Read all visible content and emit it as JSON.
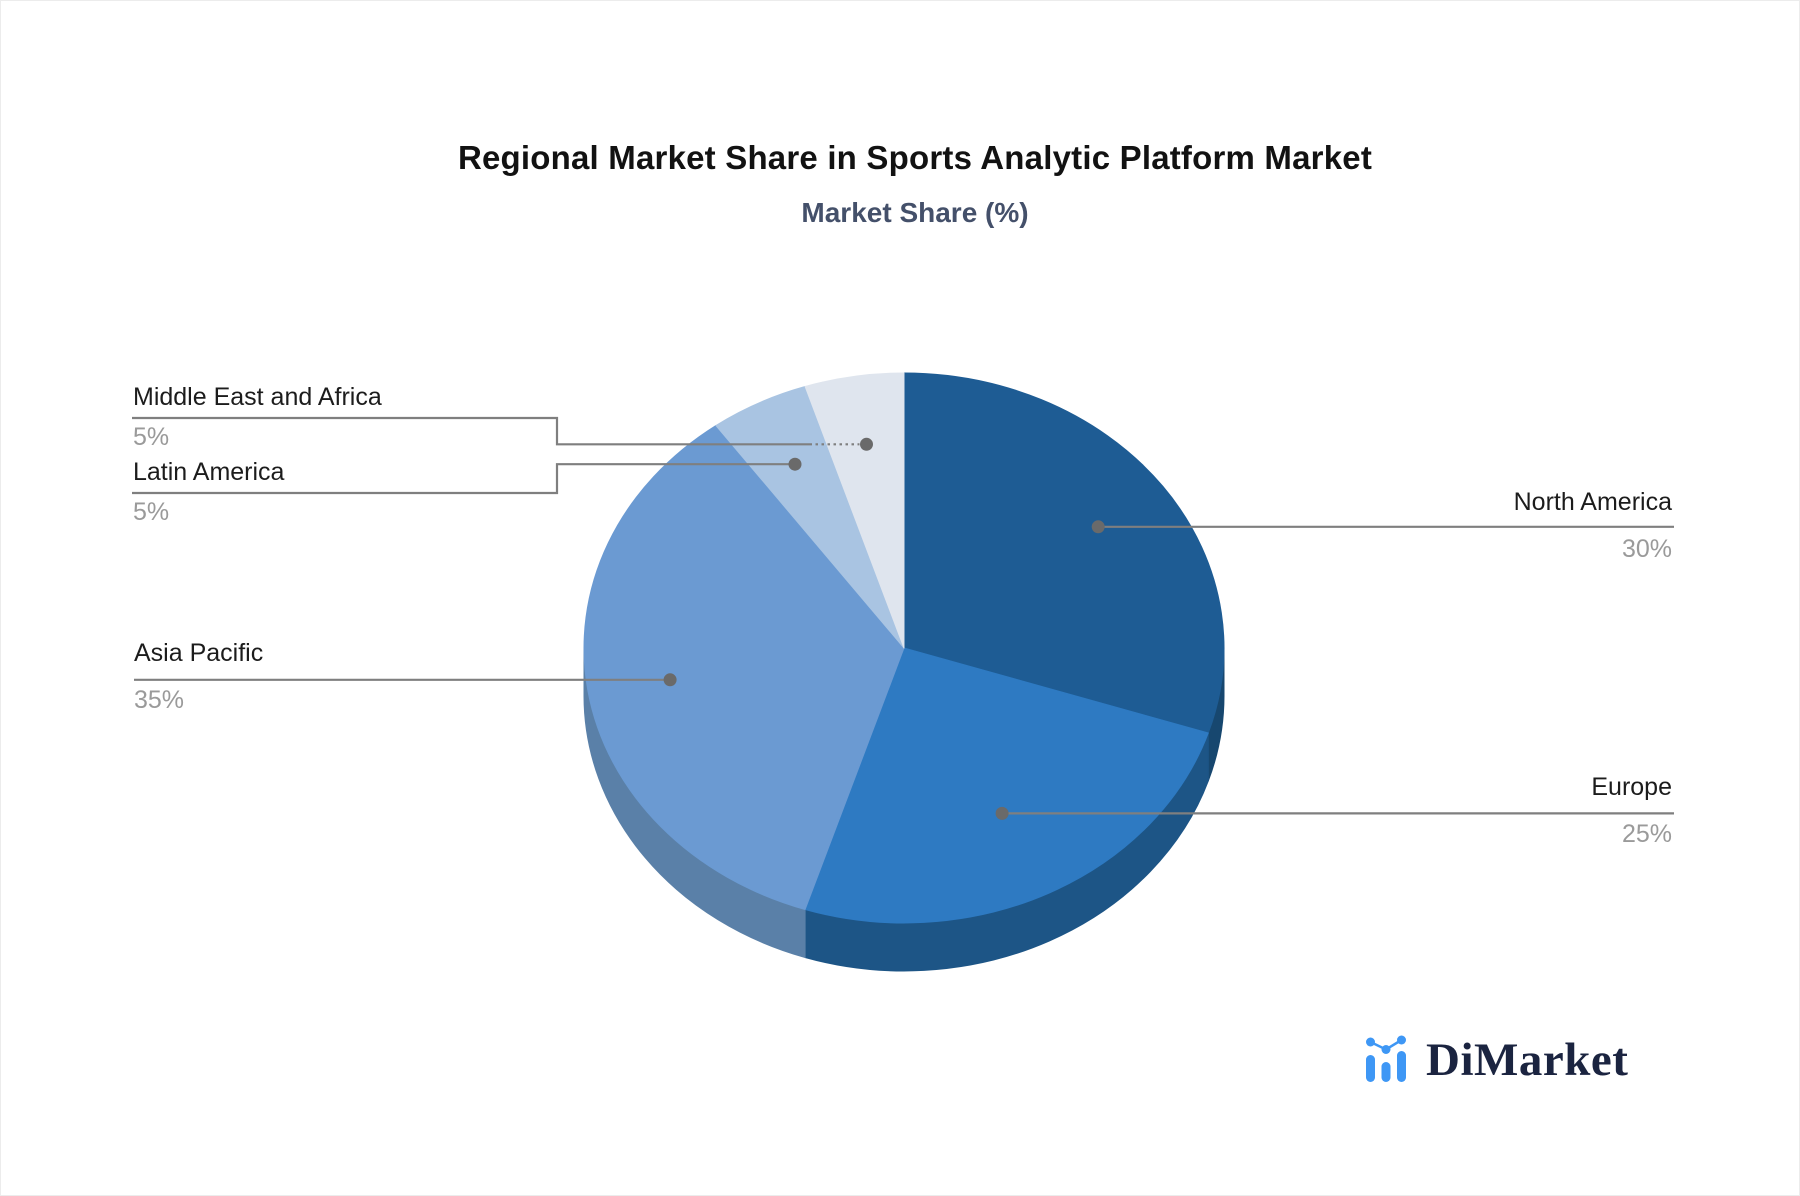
{
  "header": {
    "title": "Regional Market Share in Sports Analytic Platform Market",
    "subtitle": "Market Share (%)"
  },
  "chart_data": {
    "type": "pie",
    "style": "3d",
    "title": "Regional Market Share in Sports Analytic Platform Market",
    "subtitle": "Market Share (%)",
    "unit": "%",
    "start_angle": "12-o-clock",
    "direction": "clockwise",
    "legend_position": "none (external leader-line callouts)",
    "slices": [
      {
        "label": "North America",
        "value": 30,
        "display": "30%",
        "color": "#1e5c94",
        "side_color": "#17476f"
      },
      {
        "label": "Europe",
        "value": 25,
        "display": "25%",
        "color": "#2e7ac2",
        "side_color": "#1d5586"
      },
      {
        "label": "Asia Pacific",
        "value": 35,
        "display": "35%",
        "color": "#6b9ad2",
        "side_color": "#5a80a8"
      },
      {
        "label": "Latin America",
        "value": 5,
        "display": "5%",
        "color": "#a9c4e2",
        "side_color": "#8aa6c4"
      },
      {
        "label": "Middle East and Africa",
        "value": 5,
        "display": "5%",
        "color": "#dfe5ee",
        "side_color": "#b9c4d4"
      }
    ]
  },
  "colors": {
    "background": "#ffffff",
    "title_text": "#121212",
    "subtitle_text": "#44506a",
    "label_text": "#1c1c1c",
    "percent_text": "#9a9a9a",
    "leader_line": "#7f7f7f",
    "leader_dot": "#6a6a6a"
  },
  "branding": {
    "logo_text": "DiMarket",
    "logo_icon": "bar-line-chart-icon",
    "logo_icon_color": "#3e97f5",
    "logo_text_color": "#1b2440"
  }
}
